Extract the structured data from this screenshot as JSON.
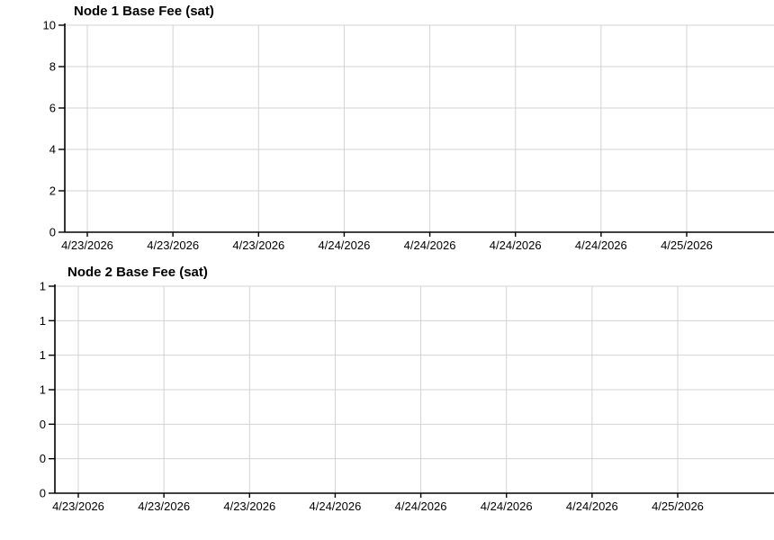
{
  "page": {
    "background": "#ffffff"
  },
  "colors": {
    "axis": "#000000",
    "grid": "#d3d3d3",
    "text": "#000000"
  },
  "chart_data": [
    {
      "type": "line",
      "title": "Node 1 Base Fee (sat)",
      "xlabel": "",
      "ylabel": "",
      "x_tick_labels": [
        "4/23/2026",
        "4/23/2026",
        "4/23/2026",
        "4/24/2026",
        "4/24/2026",
        "4/24/2026",
        "4/24/2026",
        "4/25/2026"
      ],
      "y_tick_labels": [
        "10",
        "8",
        "6",
        "4",
        "2",
        "0"
      ],
      "ylim": [
        0,
        10
      ],
      "grid": true,
      "legend": "none",
      "series": []
    },
    {
      "type": "line",
      "title": "Node 2 Base Fee (sat)",
      "xlabel": "",
      "ylabel": "",
      "x_tick_labels": [
        "4/23/2026",
        "4/23/2026",
        "4/23/2026",
        "4/24/2026",
        "4/24/2026",
        "4/24/2026",
        "4/24/2026",
        "4/25/2026"
      ],
      "y_tick_labels": [
        "1",
        "1",
        "1",
        "1",
        "0",
        "0",
        "0"
      ],
      "ylim": [
        0,
        1.2
      ],
      "grid": true,
      "legend": "none",
      "series": []
    }
  ]
}
